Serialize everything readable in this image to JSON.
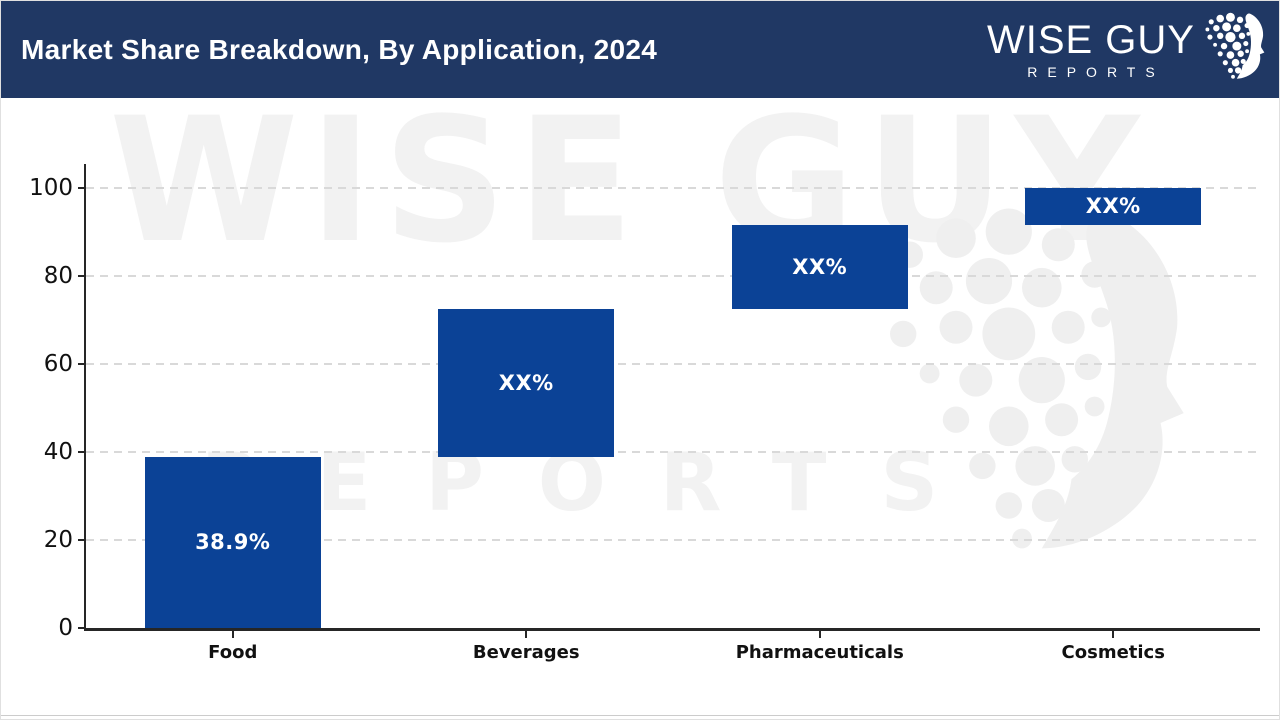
{
  "header": {
    "title": "Market Share Breakdown, By Application, 2024",
    "bg_color": "#203864",
    "brand": {
      "name": "WISE GUY",
      "sub": "REPORTS"
    }
  },
  "watermark": {
    "line1": "WISE GUY",
    "line2": "REPORTS"
  },
  "chart_data": {
    "type": "bar",
    "subtype": "waterfall",
    "title": "Market Share Breakdown, By Application, 2024",
    "categories": [
      "Food",
      "Beverages",
      "Pharmaceuticals",
      "Cosmetics"
    ],
    "series": [
      {
        "name": "Market share (%)",
        "segments": [
          {
            "category": "Food",
            "start": 0,
            "end": 38.9,
            "label": "38.9%"
          },
          {
            "category": "Beverages",
            "start": 38.9,
            "end": 72.4,
            "label": "XX%"
          },
          {
            "category": "Pharmaceuticals",
            "start": 72.4,
            "end": 91.7,
            "label": "XX%"
          },
          {
            "category": "Cosmetics",
            "start": 91.7,
            "end": 100,
            "label": "XX%"
          }
        ]
      }
    ],
    "ylim": [
      0,
      100
    ],
    "yticks": [
      0,
      20,
      40,
      60,
      80,
      100
    ],
    "xlabel": "",
    "ylabel": "",
    "grid": "horizontal-dashed",
    "legend": "none",
    "colors": {
      "bar": "#0b4296",
      "bar_label": "#ffffff",
      "axis": "#262626",
      "gridline": "#d9d9d9",
      "tick_label": "#111111"
    }
  }
}
